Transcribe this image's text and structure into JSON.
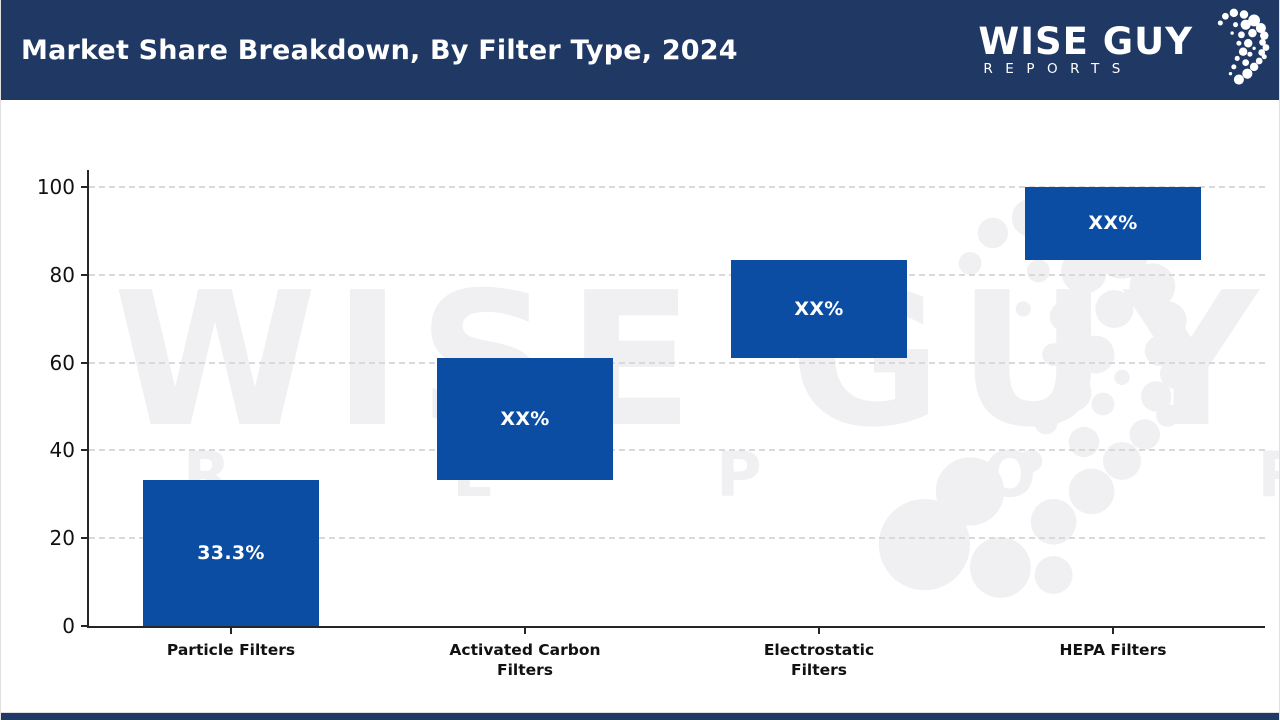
{
  "header": {
    "title": "Market Share Breakdown, By Filter Type, 2024",
    "logo": {
      "line1": "WISE GUY",
      "line2": "REPORTS"
    }
  },
  "watermark": {
    "line1": "WISE GUY",
    "line2": "R E P O R T S"
  },
  "colors": {
    "header_bg": "#1f3864",
    "bar": "#0b4da2",
    "gridline": "#d9d9d9",
    "watermark": "#f0f0f2",
    "bar_label_text": "#ffffff",
    "axis_text": "#111111"
  },
  "chart_data": {
    "type": "bar",
    "subtype": "waterfall",
    "title": "Market Share Breakdown, By Filter Type, 2024",
    "xlabel": "",
    "ylabel": "",
    "ylim": [
      0,
      100
    ],
    "yticks": [
      0,
      20,
      40,
      60,
      80,
      100
    ],
    "grid": "horizontal-dashed",
    "legend": "none",
    "categories": [
      "Particle Filters",
      "Activated Carbon\nFilters",
      "Electrostatic\nFilters",
      "HEPA Filters"
    ],
    "segments": [
      {
        "category": "Particle Filters",
        "start": 0,
        "end": 33.3,
        "value": 33.3,
        "label": "33.3%"
      },
      {
        "category": "Activated Carbon Filters",
        "start": 33.3,
        "end": 61.0,
        "value": 27.7,
        "label": "XX%"
      },
      {
        "category": "Electrostatic Filters",
        "start": 61.0,
        "end": 83.4,
        "value": 22.4,
        "label": "XX%"
      },
      {
        "category": "HEPA Filters",
        "start": 83.4,
        "end": 100,
        "value": 16.6,
        "label": "XX%"
      }
    ]
  }
}
